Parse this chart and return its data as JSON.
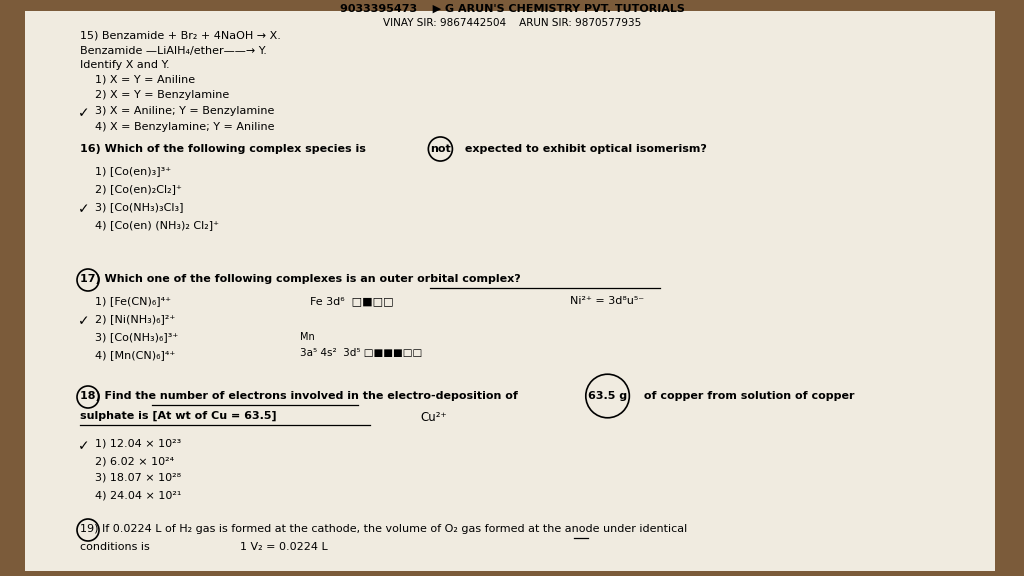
{
  "bg_color": "#7B5B3A",
  "paper_color": "#F0EBE0",
  "header1": "9033395473    G ARUN'S CHEMISTRY PVT. TUTORIALS",
  "header2": "VINAY SIR: 9867442504    ARUN SIR: 9870577935",
  "q15_options": [
    "1) X = Y = Aniline",
    "2) X = Y = Benzylamine",
    "3) X = Aniline; Y = Benzylamine",
    "4) X = Benzylamine; Y = Aniline"
  ],
  "q16_options": [
    "1) [Co(en)₃]³⁺",
    "2) [Co(en)₂Cl₂]⁺",
    "3) [Co(NH₃)₃Cl₃]",
    "4) [Co(en) (NH₃)₂ Cl₂]⁺"
  ],
  "q17_options": [
    "1) [Fe(CN)₆]⁴⁺",
    "2) [Ni(NH₃)₆]²⁺",
    "3) [Co(NH₃)₆]³⁺",
    "4) [Mn(CN)₆]⁴⁺"
  ],
  "q18_options": [
    "1) 12.04 × 10²³",
    "2) 6.02 × 10²⁴",
    "3) 18.07 × 10²⁸",
    "4) 24.04 × 10²¹"
  ]
}
